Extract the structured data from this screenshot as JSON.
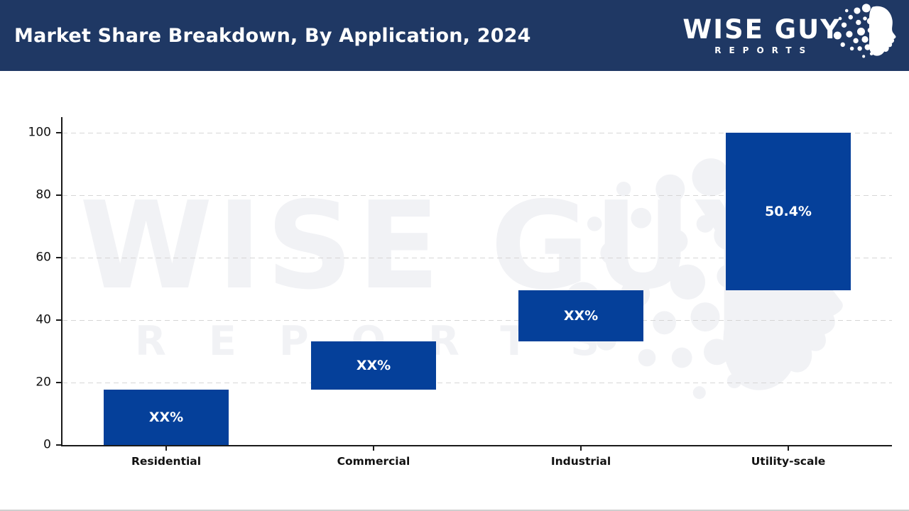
{
  "header": {
    "title": "Market Share Breakdown, By Application, 2024",
    "brand_line1": "WISE GUY",
    "brand_line2": "REPORTS"
  },
  "watermark": {
    "line1": "WISE GUY",
    "line2": "REPORTS"
  },
  "colors": {
    "c-header": "#1f3864",
    "c-bar": "#05409a",
    "c-grid": "#d6d6d6",
    "c-axis": "#1a1a1a",
    "c-wm": "#f1f2f5"
  },
  "chart_data": {
    "type": "bar",
    "subtype": "waterfall",
    "title": "Market Share Breakdown, By Application, 2024",
    "xlabel": "",
    "ylabel": "",
    "ylim": [
      0,
      100
    ],
    "yticks": [
      0,
      20,
      40,
      60,
      80,
      100
    ],
    "grid": "horizontal-dashed",
    "legend": "none",
    "categories": [
      "Residential",
      "Commercial",
      "Industrial",
      "Utility-scale"
    ],
    "segments": [
      {
        "category": "Residential",
        "start": 0,
        "end": 17.6,
        "value_label": "XX%"
      },
      {
        "category": "Commercial",
        "start": 17.6,
        "end": 33.1,
        "value_label": "XX%"
      },
      {
        "category": "Industrial",
        "start": 33.1,
        "end": 49.6,
        "value_label": "XX%"
      },
      {
        "category": "Utility-scale",
        "start": 49.6,
        "end": 100,
        "value_label": "50.4%"
      }
    ]
  }
}
